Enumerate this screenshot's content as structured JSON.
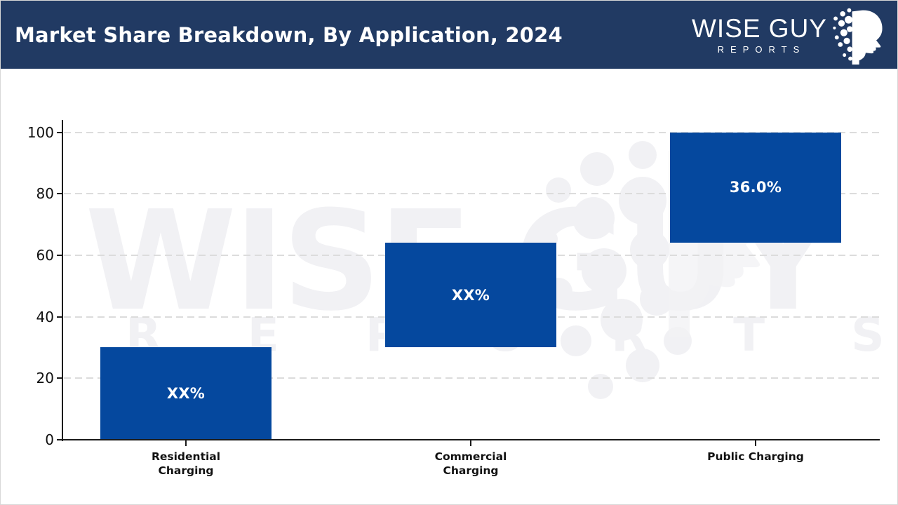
{
  "header": {
    "title": "Market Share Breakdown, By Application, 2024",
    "bg_color": "#213a63",
    "logo": {
      "wordmark": "WISE GUY",
      "subtext": "REPORTS"
    }
  },
  "watermark": {
    "wordmark": "WISE GUY",
    "subtext": "R E P O R T S"
  },
  "chart_data": {
    "type": "bar",
    "subtype": "floating-segment-bars",
    "title": "Market Share Breakdown, By Application, 2024",
    "categories": [
      "Residential Charging",
      "Commercial Charging",
      "Public Charging"
    ],
    "category_display_lines": [
      [
        "Residential",
        "Charging"
      ],
      [
        "Commercial",
        "Charging"
      ],
      [
        "Public Charging"
      ]
    ],
    "segments": [
      {
        "category": "Residential Charging",
        "start": 0,
        "end": 30,
        "label": "XX%"
      },
      {
        "category": "Commercial Charging",
        "start": 30,
        "end": 64,
        "label": "XX%"
      },
      {
        "category": "Public Charging",
        "start": 64,
        "end": 100,
        "label": "36.0%"
      }
    ],
    "xlabel": "",
    "ylabel": "",
    "ylim": [
      0,
      100
    ],
    "yticks": [
      0,
      20,
      40,
      60,
      80,
      100
    ],
    "grid": "horizontal-dashed",
    "bar_color": "#05489e",
    "bar_label_color": "#ffffff",
    "axis_color": "#1a1a1a",
    "gridline_color": "#dcdcdc"
  }
}
